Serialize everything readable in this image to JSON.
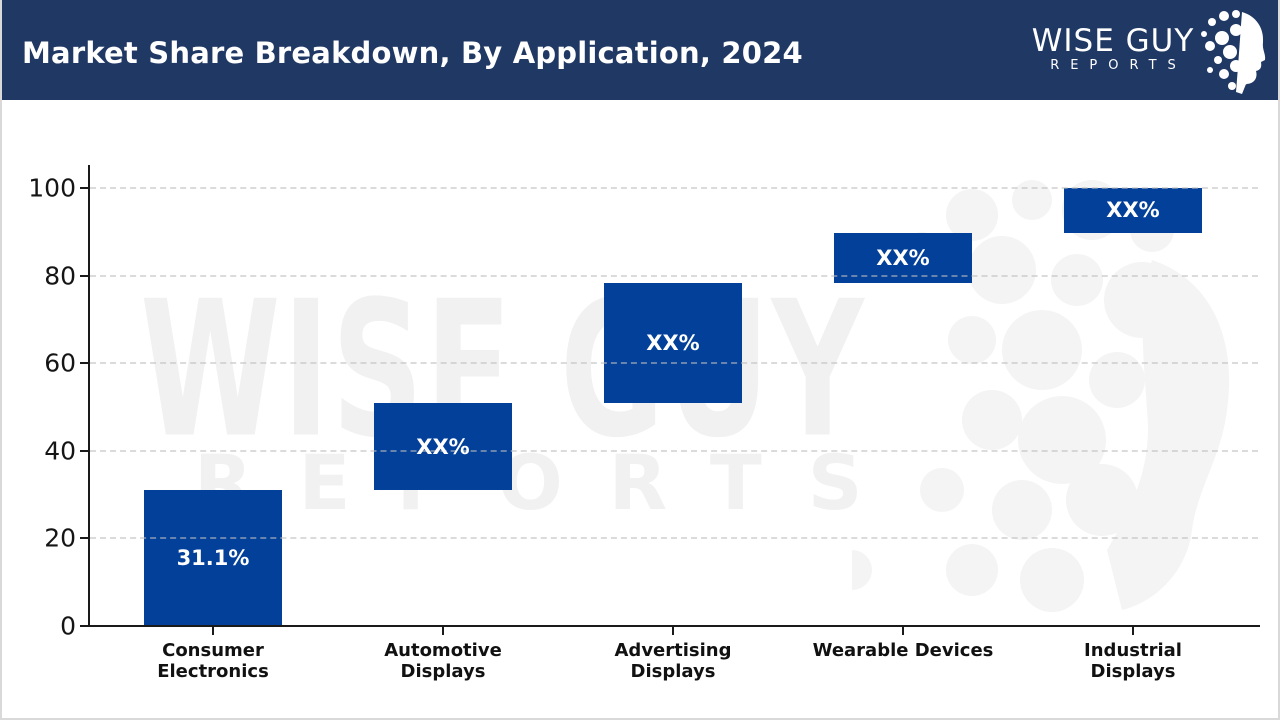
{
  "header": {
    "title": "Market Share Breakdown, By Application, 2024",
    "logo": {
      "line1": "WISE GUY",
      "line2": "REPORTS"
    }
  },
  "watermark": {
    "line1": "WISE GUY",
    "line2": "REPORTS"
  },
  "colors": {
    "header_bg": "#203864",
    "bar": "#03409a",
    "bar_label": "#ffffff",
    "axis": "#1a1a1a",
    "gridline": "#d9d9d9",
    "watermark": "#f1f1f1"
  },
  "chart_data": {
    "type": "bar",
    "subtype": "waterfall",
    "title": "Market Share Breakdown, By Application, 2024",
    "xlabel": "",
    "ylabel": "",
    "ylim": [
      0,
      105
    ],
    "yticks": [
      0,
      20,
      40,
      60,
      80,
      100
    ],
    "grid": {
      "axis": "y",
      "style": "dashed",
      "on": true
    },
    "legend": null,
    "categories": [
      "Consumer\nElectronics",
      "Automotive\nDisplays",
      "Advertising\nDisplays",
      "Wearable Devices",
      "Industrial\nDisplays"
    ],
    "segments": [
      {
        "category": "Consumer Electronics",
        "start": 0,
        "end": 31.1,
        "label": "31.1%"
      },
      {
        "category": "Automotive Displays",
        "start": 31.1,
        "end": 50.8,
        "label": "XX%"
      },
      {
        "category": "Advertising Displays",
        "start": 50.8,
        "end": 78.2,
        "label": "XX%"
      },
      {
        "category": "Wearable Devices",
        "start": 78.2,
        "end": 89.8,
        "label": "XX%"
      },
      {
        "category": "Industrial Displays",
        "start": 89.8,
        "end": 100,
        "label": "XX%"
      }
    ]
  }
}
